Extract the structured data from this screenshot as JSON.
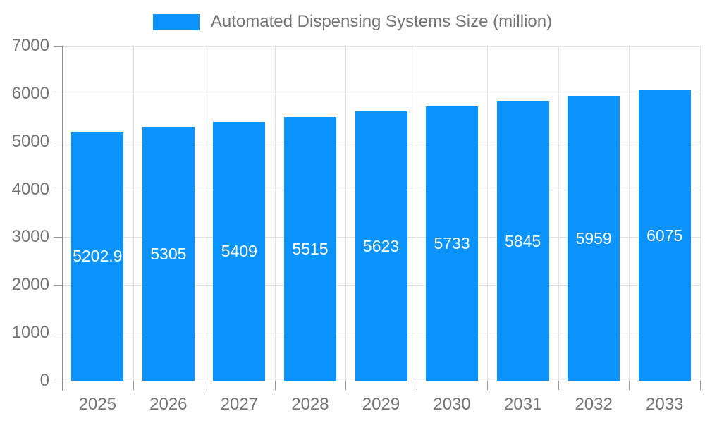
{
  "legend": {
    "label": "Automated Dispensing Systems Size (million)",
    "swatch_color": "#0b93fc"
  },
  "chart_data": {
    "type": "bar",
    "title": "Automated Dispensing Systems Size (million)",
    "categories": [
      "2025",
      "2026",
      "2027",
      "2028",
      "2029",
      "2030",
      "2031",
      "2032",
      "2033"
    ],
    "values": [
      5202.9,
      5305,
      5409,
      5515,
      5623,
      5733,
      5845,
      5959,
      6075
    ],
    "value_labels": [
      "5202.9",
      "5305",
      "5409",
      "5515",
      "5623",
      "5733",
      "5845",
      "5959",
      "6075"
    ],
    "xlabel": "",
    "ylabel": "",
    "ylim": [
      0,
      7000
    ],
    "yticks": [
      0,
      1000,
      2000,
      3000,
      4000,
      5000,
      6000,
      7000
    ],
    "grid": true,
    "legend_position": "top",
    "bar_color": "#0b93fc",
    "bar_label_color": "#ffffff",
    "axis_text_color": "#757575",
    "gridline_color": "#e0e0e0"
  }
}
